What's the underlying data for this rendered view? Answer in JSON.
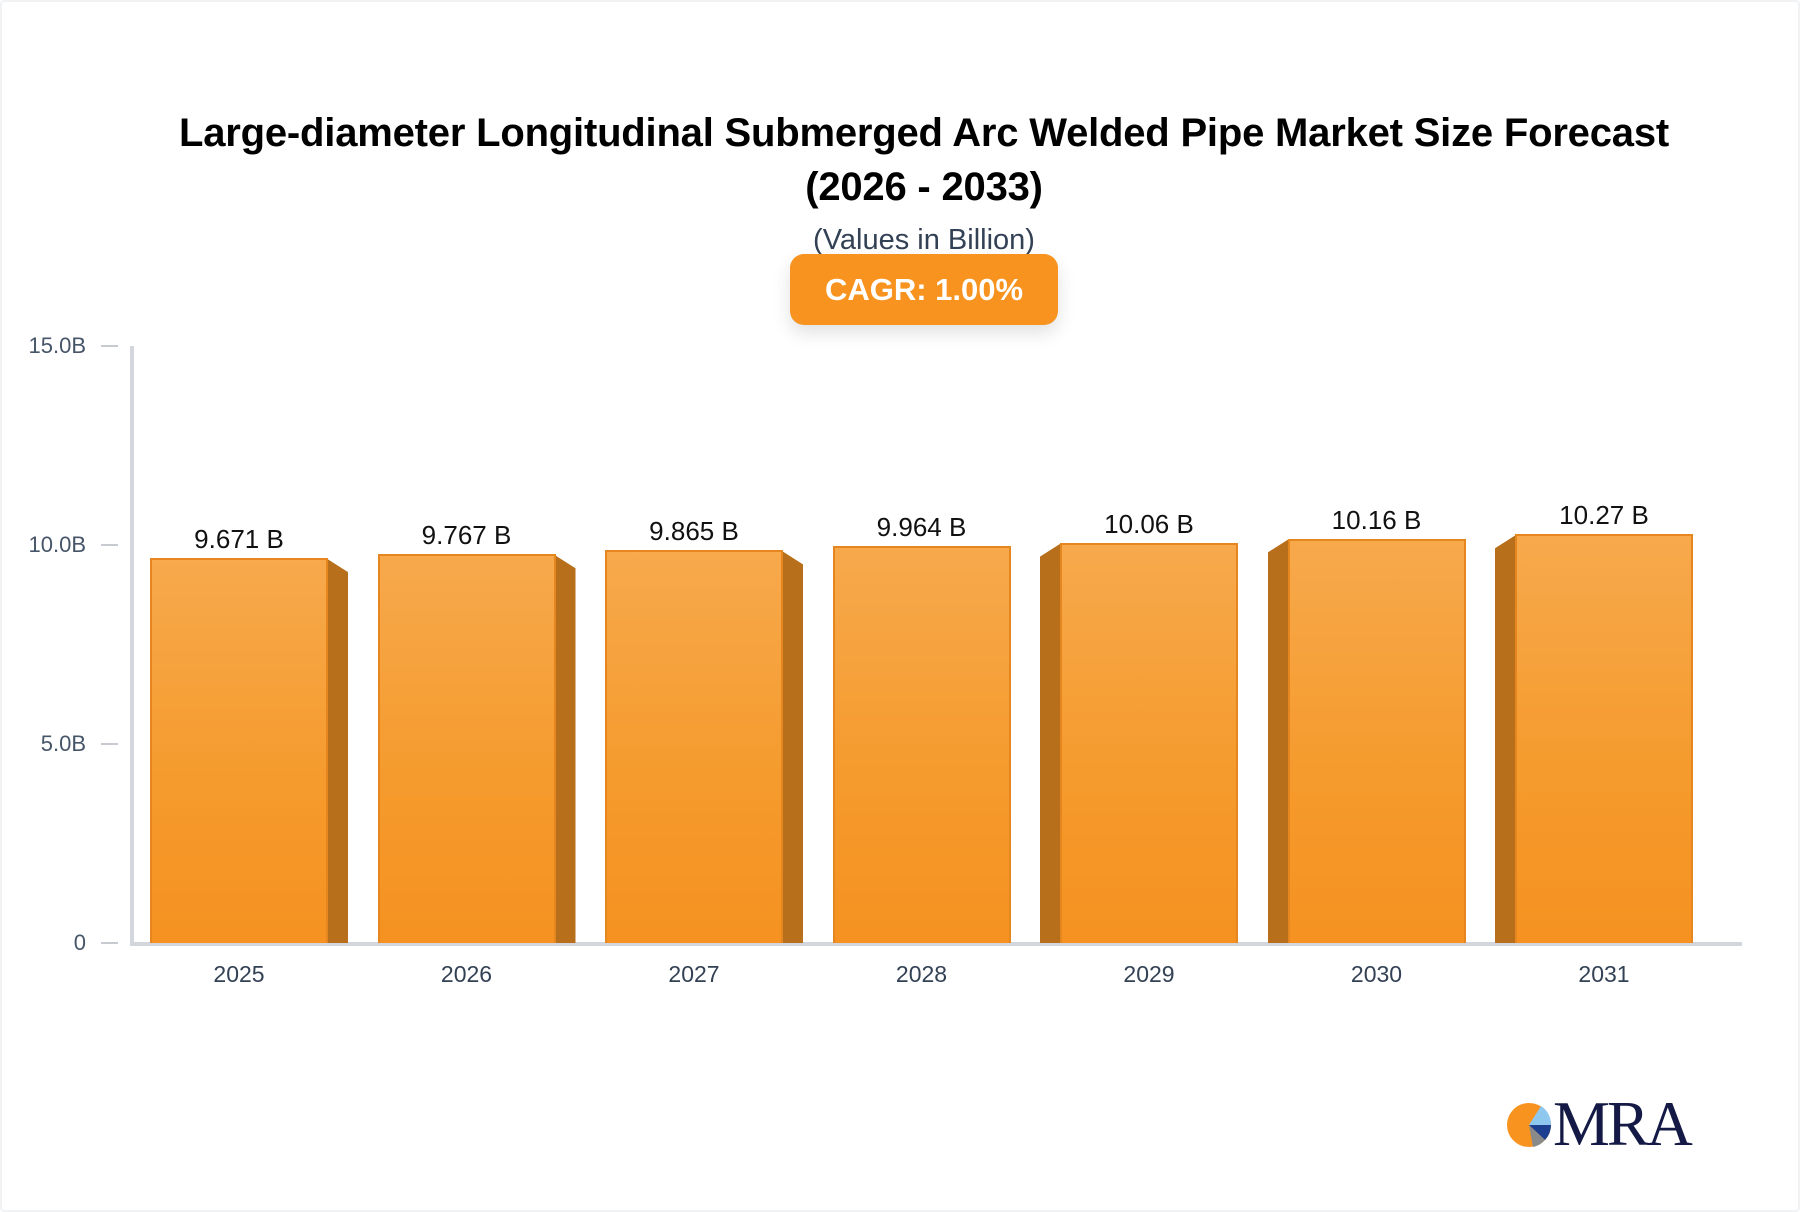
{
  "chart_data": {
    "type": "bar",
    "title": "Large-diameter Longitudinal Submerged Arc Welded Pipe Market Size Forecast (2026 - 2033)",
    "title_lines": [
      "Large-diameter Longitudinal Submerged Arc Welded Pipe Market Size Forecast",
      "(2026 - 2033)"
    ],
    "subtitle": "(Values in Billion)",
    "annotation": "CAGR: 1.00%",
    "xlabel": "",
    "ylabel": "",
    "categories": [
      "2025",
      "2026",
      "2027",
      "2028",
      "2029",
      "2030",
      "2031"
    ],
    "values": [
      9.671,
      9.767,
      9.865,
      9.964,
      10.06,
      10.16,
      10.27
    ],
    "value_labels": [
      "9.671 B",
      "9.767 B",
      "9.865 B",
      "9.964 B",
      "10.06 B",
      "10.16 B",
      "10.27 B"
    ],
    "unit": "B",
    "ylim": [
      0,
      15
    ],
    "yticks": [
      0,
      5,
      10,
      15
    ],
    "ytick_labels": [
      "0",
      "5.0B",
      "10.0B",
      "15.0B"
    ],
    "grid": false,
    "legend": null,
    "bar_color": "#F59A2C",
    "bar_side_color": "#B86F1B"
  },
  "header": {
    "title_line1": "Large-diameter Longitudinal Submerged Arc Welded Pipe Market Size Forecast",
    "title_line2": "(2026 - 2033)",
    "subtitle": "(Values in Billion)",
    "cagr_badge": "CAGR: 1.00%"
  },
  "colors": {
    "accent": "#F7931E",
    "title": "#000000",
    "subtitle": "#334155",
    "axis": "#D3D6DC",
    "logo_navy": "#141A45"
  },
  "logo": {
    "text": "MRA"
  }
}
